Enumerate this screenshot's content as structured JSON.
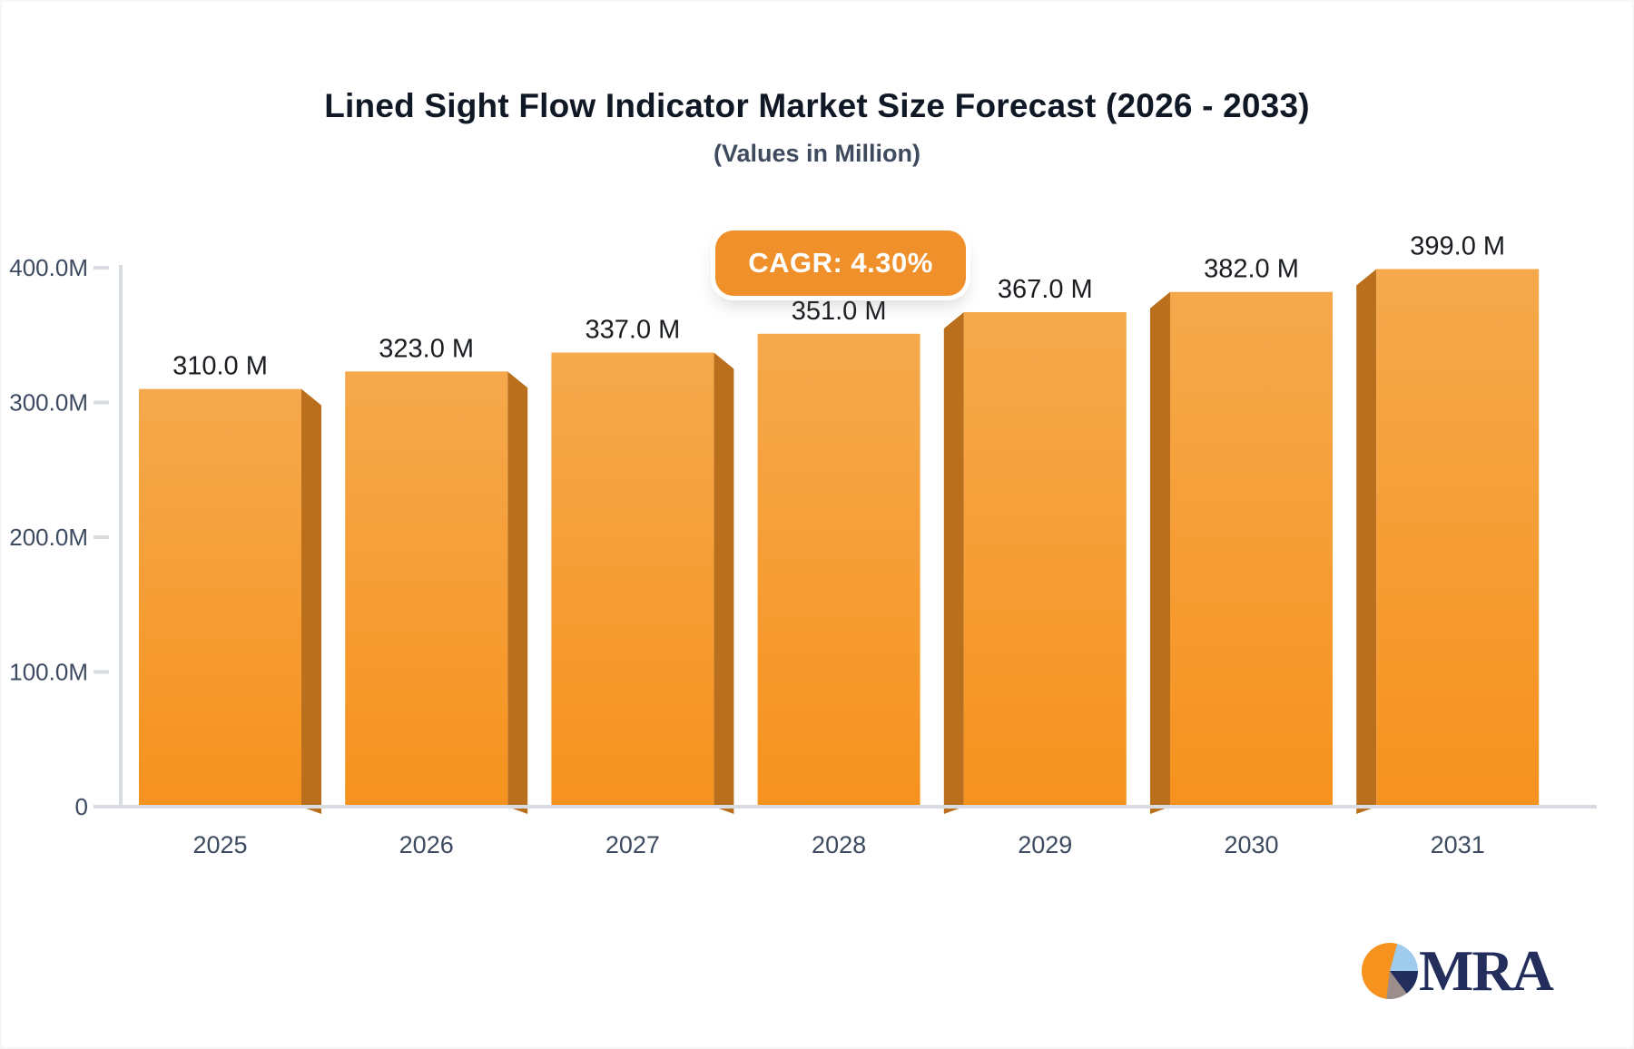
{
  "header": {
    "title": "Lined Sight Flow Indicator Market Size Forecast (2026 - 2033)",
    "subtitle": "(Values in Million)"
  },
  "badge": {
    "label": "CAGR: 4.30%",
    "bg": "#F0902B"
  },
  "logo": {
    "text": "MRA"
  },
  "colors": {
    "bar_face_top": "#F5A94C",
    "bar_face_bottom": "#F6921E",
    "bar_side": "#B96F1C",
    "axis_line": "#D8DBE0",
    "tick_text": "#3D4B61",
    "value_text": "#191C20",
    "title_text": "#101826",
    "subtitle_text": "#3E4A5E",
    "logo_navy": "#232E5C",
    "logo_lightblue": "#9FCBEC",
    "logo_gray": "#9C8F8B",
    "logo_orange": "#F6921E"
  },
  "chart_data": {
    "type": "bar",
    "title": "Lined Sight Flow Indicator Market Size Forecast (2026 - 2033)",
    "subtitle": "(Values in Million)",
    "annotation": "CAGR: 4.30%",
    "categories": [
      "2025",
      "2026",
      "2027",
      "2028",
      "2029",
      "2030",
      "2031"
    ],
    "values": [
      310,
      323,
      337,
      351,
      367,
      382,
      399
    ],
    "value_labels": [
      "310.0 M",
      "323.0 M",
      "337.0 M",
      "351.0 M",
      "367.0 M",
      "382.0 M",
      "399.0 M"
    ],
    "xlabel": "",
    "ylabel": "",
    "ylim": [
      0,
      400
    ],
    "y_tick_values": [
      400,
      300,
      200,
      100,
      0
    ],
    "y_tick_labels": [
      "400.0M",
      "300.0M",
      "200.0M",
      "100.0M",
      "0"
    ],
    "grid": false,
    "legend": false
  }
}
